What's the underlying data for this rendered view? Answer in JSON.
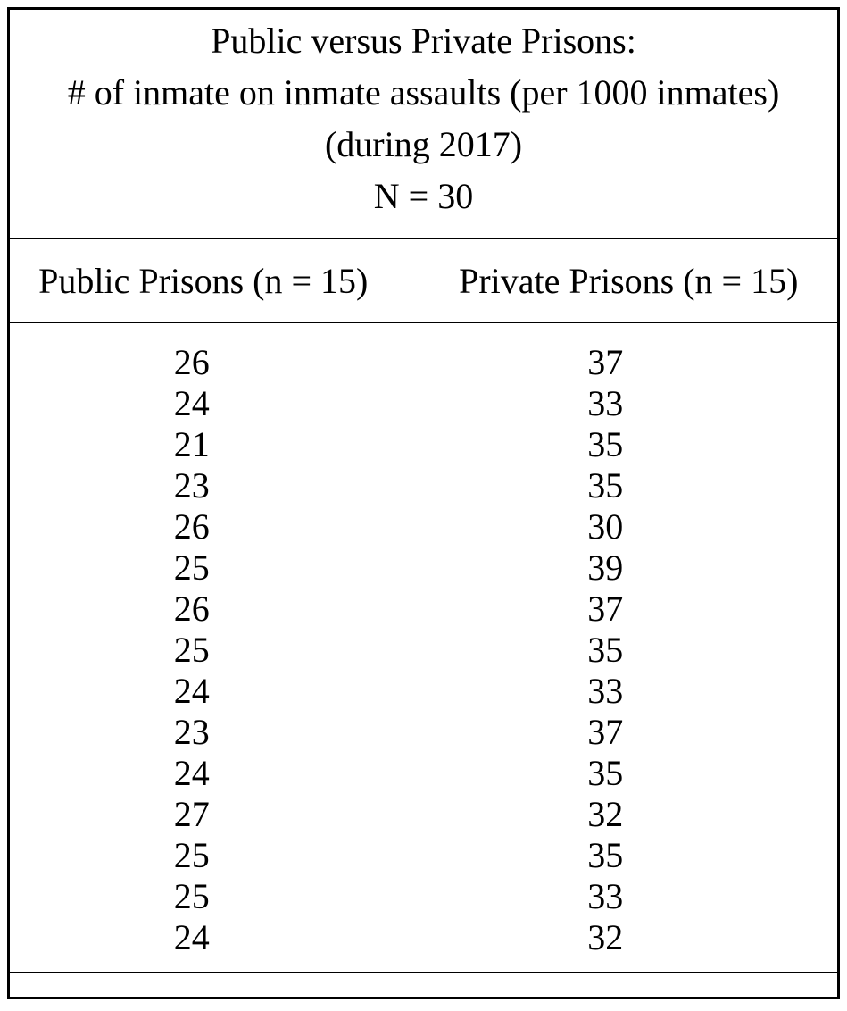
{
  "table": {
    "title_lines": [
      "Public versus Private Prisons:",
      "# of inmate on inmate assaults (per 1000 inmates)",
      "(during 2017)",
      "N = 30"
    ],
    "columns": [
      {
        "header": "Public Prisons (n = 15)",
        "values": [
          "26",
          "24",
          "21",
          "23",
          "26",
          "25",
          "26",
          "25",
          "24",
          "23",
          "24",
          "27",
          "25",
          "25",
          "24"
        ]
      },
      {
        "header": "Private Prisons (n = 15)",
        "values": [
          "37",
          "33",
          "35",
          "35",
          "30",
          "39",
          "37",
          "35",
          "33",
          "37",
          "35",
          "32",
          "35",
          "33",
          "32"
        ]
      }
    ],
    "colors": {
      "text": "#000000",
      "background": "#ffffff",
      "border": "#000000"
    }
  },
  "chart_data": {
    "type": "table",
    "title": "Public versus Private Prisons: # of inmate on inmate assaults (per 1000 inmates) (during 2017) N = 30",
    "total_n": 30,
    "columns": [
      "Public Prisons (n = 15)",
      "Private Prisons (n = 15)"
    ],
    "series": [
      {
        "name": "Public Prisons",
        "n": 15,
        "values": [
          26,
          24,
          21,
          23,
          26,
          25,
          26,
          25,
          24,
          23,
          24,
          27,
          25,
          25,
          24
        ]
      },
      {
        "name": "Private Prisons",
        "n": 15,
        "values": [
          37,
          33,
          35,
          35,
          30,
          39,
          37,
          35,
          33,
          37,
          35,
          32,
          35,
          33,
          32
        ]
      }
    ]
  }
}
